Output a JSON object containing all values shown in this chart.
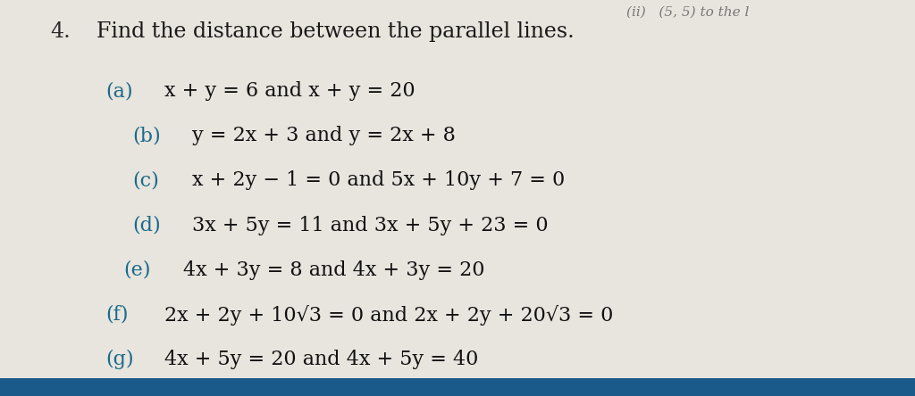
{
  "title_num": "4.",
  "title_text": "Find the distance between the parallel lines.",
  "corner_text": "(ii)   (5, 5) to the l",
  "bg_color": "#e8e4de",
  "page_color": "#f0ece6",
  "items": [
    {
      "label": "(a)",
      "text": "x + y = 6 and x + y = 20",
      "indent": 0.13
    },
    {
      "label": "(b)",
      "text": "y = 2x + 3 and y = 2x + 8",
      "indent": 0.16
    },
    {
      "label": "(c)",
      "text": "x + 2y − 1 = 0 and 5x + 10y + 7 = 0",
      "indent": 0.16
    },
    {
      "label": "(d)",
      "text": "3x + 5y = 11 and 3x + 5y + 23 = 0",
      "indent": 0.16
    },
    {
      "label": "(e)",
      "text": "4x + 3y = 8 and 4x + 3y = 20",
      "indent": 0.15
    },
    {
      "label": "(f)",
      "text": "2x + 2y + 10√3 = 0 and 2x + 2y + 20√3 = 0",
      "indent": 0.13
    },
    {
      "label": "(g)",
      "text": "4x + 5y = 20 and 4x + 5y = 40",
      "indent": 0.13
    }
  ],
  "title_fontsize": 17,
  "item_fontsize": 16,
  "num_color": "#2a2a2a",
  "title_color": "#1a1a1a",
  "label_color": "#1a6b8a",
  "text_color": "#111111",
  "corner_color": "#777777",
  "bottom_bar_color": "#1a5a8a",
  "bottom_bar_height": 0.045
}
